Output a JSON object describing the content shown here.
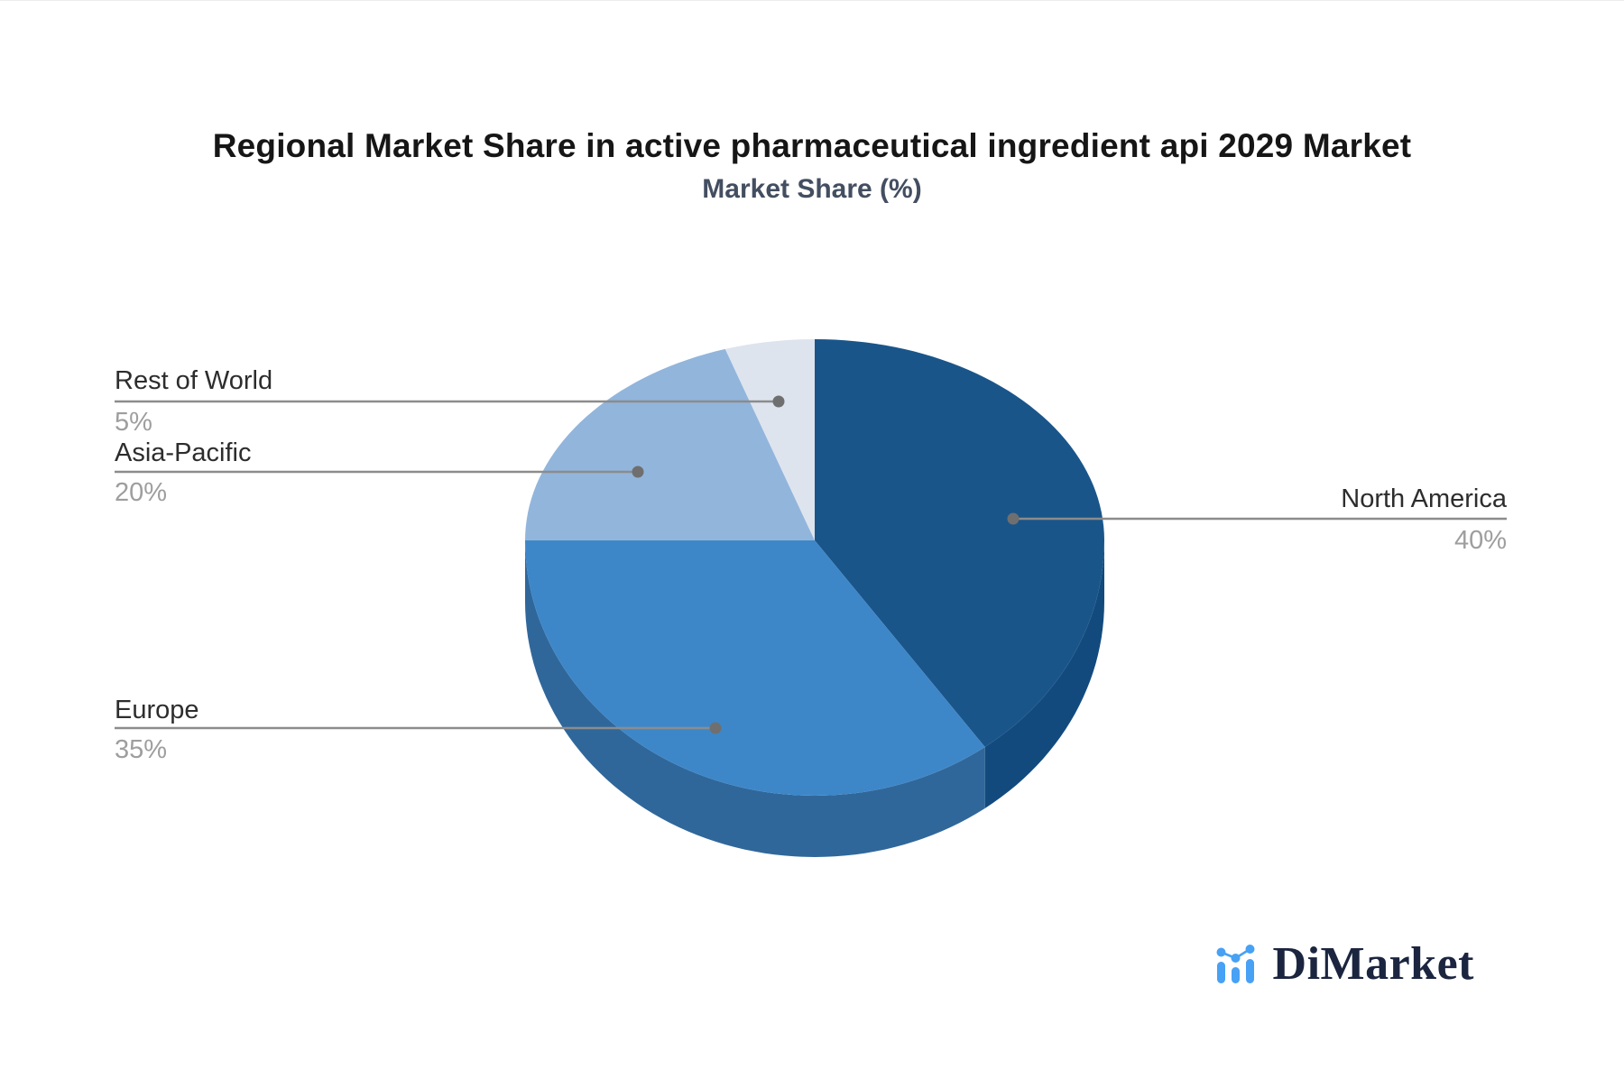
{
  "chart_data": {
    "type": "pie",
    "style": "3d-pie",
    "title": "Regional Market Share in active pharmaceutical ingredient api 2029 Market",
    "subtitle": "Market Share (%)",
    "unit": "%",
    "start_angle": "12-oclock",
    "direction": "clockwise",
    "legend_position": "callout-labels",
    "categories": [
      "North America",
      "Europe",
      "Asia-Pacific",
      "Rest of World"
    ],
    "values": [
      40,
      35,
      20,
      5
    ],
    "slices": [
      {
        "label": "North America",
        "value": 40,
        "value_label": "40%",
        "color": "#1a558a",
        "side_color": "#134a7e",
        "label_side": "right"
      },
      {
        "label": "Europe",
        "value": 35,
        "value_label": "35%",
        "color": "#3d87c9",
        "side_color": "#30679a",
        "label_side": "left"
      },
      {
        "label": "Asia-Pacific",
        "value": 20,
        "value_label": "20%",
        "color": "#92b5dc",
        "side_color": "#7ba3cc",
        "label_side": "left"
      },
      {
        "label": "Rest of World",
        "value": 5,
        "value_label": "5%",
        "color": "#dde4ee",
        "side_color": "#c3cedd",
        "label_side": "left"
      }
    ]
  },
  "branding": {
    "logo_text": "DiMarket",
    "logo_icon": "bar-chart-logo-icon",
    "logo_text_color": "#1b2540",
    "logo_accent_color": "#47a1f5"
  },
  "colors": {
    "background": "#ffffff",
    "title": "#161616",
    "subtitle": "#434e61",
    "label": "#2d2d2d",
    "percent": "#9e9e9e",
    "callout_line": "#8c8c8c",
    "callout_dot": "#6f6f6f"
  }
}
